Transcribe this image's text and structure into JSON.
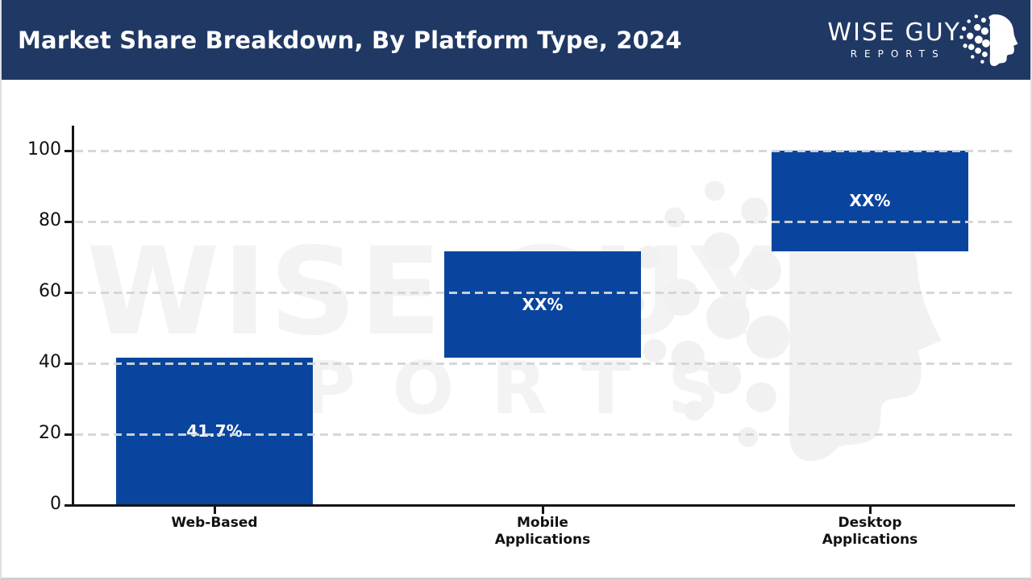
{
  "header": {
    "title": "Market Share Breakdown, By Platform Type, 2024",
    "logo": {
      "wordmark": "WISE GUY",
      "subtext": "REPORTS"
    }
  },
  "watermark": {
    "wordmark": "WISE GUY",
    "subtext": "REPORTS"
  },
  "colors": {
    "header_bg": "#203864",
    "bar": "#09459e",
    "bar_label": "#ffffff",
    "axis": "#151515",
    "grid": "#d5d5d5",
    "watermark": "#f3f3f3",
    "background": "#ffffff"
  },
  "chart_data": {
    "type": "bar",
    "subtype": "waterfall-stacked-percent",
    "title": "Market Share Breakdown, By Platform Type, 2024",
    "categories": [
      "Web-Based",
      "Mobile Applications",
      "Desktop Applications"
    ],
    "category_display_lines": [
      [
        "Web-Based"
      ],
      [
        "Mobile",
        "Applications"
      ],
      [
        "Desktop",
        "Applications"
      ]
    ],
    "bars": [
      {
        "category": "Web-Based",
        "start": 0,
        "end": 41.7,
        "label": "41.7%"
      },
      {
        "category": "Mobile Applications",
        "start": 41.7,
        "end": 71.7,
        "label": "XX%"
      },
      {
        "category": "Desktop Applications",
        "start": 71.7,
        "end": 100,
        "label": "XX%"
      }
    ],
    "xlabel": "",
    "ylabel": "",
    "ylim": [
      0,
      100
    ],
    "yticks": [
      0,
      20,
      40,
      60,
      80,
      100
    ],
    "grid": "horizontal-dashed",
    "legend": null
  }
}
